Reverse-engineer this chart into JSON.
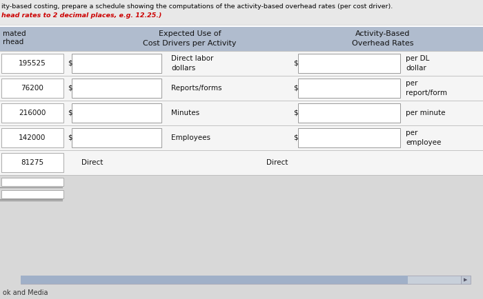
{
  "title_line1": "ity-based costing, prepare a schedule showing the computations of the activity-based overhead rates (per cost driver).",
  "title_line2": "head rates to 2 decimal places, e.g. 12.25.)",
  "col_header1": "Expected Use of\nCost Drivers per Activity",
  "col_header2": "Activity-Based\nOverhead Rates",
  "col_header_left1": "mated",
  "col_header_left2": "rhead",
  "rows": [
    {
      "value": "195525",
      "driver": "Direct labor\ndollars",
      "unit": "per DL\ndollar"
    },
    {
      "value": "76200",
      "driver": "Reports/forms",
      "unit": "per\nreport/form"
    },
    {
      "value": "216000",
      "driver": "Minutes",
      "unit": "per minute"
    },
    {
      "value": "142000",
      "driver": "Employees",
      "unit": "per\nemployee"
    },
    {
      "value": "81275",
      "driver": "Direct",
      "unit": "Direct",
      "is_direct": true
    }
  ],
  "bg_color": "#d8d8d8",
  "header_bg": "#b0bcce",
  "cell_bg": "#f5f5f5",
  "input_box_bg": "#f0f0f0",
  "title_color": "#000000",
  "subtitle_color": "#cc0000",
  "footer": "ok and Media",
  "scrollbar_color": "#a0b0c8",
  "scrollbar_track": "#c8d0da"
}
